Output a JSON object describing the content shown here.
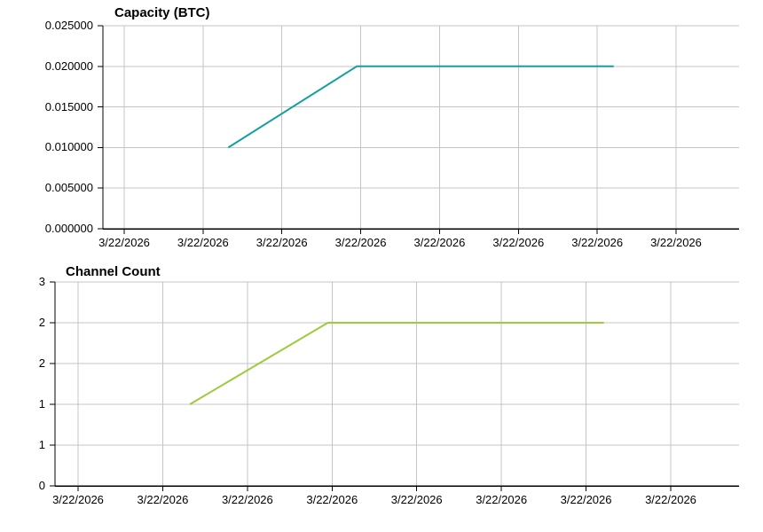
{
  "colors": {
    "background": "#ffffff",
    "grid": "#c4c4c4",
    "axis": "#000000",
    "text": "#000000",
    "capacity_line": "#14a0a0",
    "channel_line": "#9ccb3b"
  },
  "chart_data": [
    {
      "type": "line",
      "title": "Capacity (BTC)",
      "xlabel": "",
      "ylabel": "",
      "grid": true,
      "legend": "none",
      "ylim": [
        0,
        0.025
      ],
      "x_unit": "fractional-tick-index",
      "x_tick_labels": [
        "3/22/2026",
        "3/22/2026",
        "3/22/2026",
        "3/22/2026",
        "3/22/2026",
        "3/22/2026",
        "3/22/2026",
        "3/22/2026"
      ],
      "y_ticks": [
        {
          "label": "0.025000",
          "value": 0.025
        },
        {
          "label": "0.020000",
          "value": 0.02
        },
        {
          "label": "0.015000",
          "value": 0.015
        },
        {
          "label": "0.010000",
          "value": 0.01
        },
        {
          "label": "0.005000",
          "value": 0.005
        },
        {
          "label": "0.000000",
          "value": 0.0
        }
      ],
      "series": [
        {
          "name": "Capacity (BTC)",
          "color": "#14a0a0",
          "values": [
            0.01,
            0.02,
            0.02
          ],
          "points": [
            {
              "x": 1.32,
              "y": 0.01
            },
            {
              "x": 2.95,
              "y": 0.02
            },
            {
              "x": 6.21,
              "y": 0.02
            }
          ]
        }
      ]
    },
    {
      "type": "line",
      "title": "Channel Count",
      "xlabel": "",
      "ylabel": "",
      "grid": true,
      "legend": "none",
      "ylim": [
        0,
        2.5
      ],
      "x_unit": "fractional-tick-index",
      "x_tick_labels": [
        "3/22/2026",
        "3/22/2026",
        "3/22/2026",
        "3/22/2026",
        "3/22/2026",
        "3/22/2026",
        "3/22/2026",
        "3/22/2026"
      ],
      "y_ticks": [
        {
          "label": "3",
          "value": 2.5
        },
        {
          "label": "2",
          "value": 2.0
        },
        {
          "label": "2",
          "value": 1.5
        },
        {
          "label": "1",
          "value": 1.0
        },
        {
          "label": "1",
          "value": 0.5
        },
        {
          "label": "0",
          "value": 0.0
        }
      ],
      "series": [
        {
          "name": "Channel Count",
          "color": "#9ccb3b",
          "values": [
            1,
            2,
            2
          ],
          "points": [
            {
              "x": 1.32,
              "y": 1
            },
            {
              "x": 2.95,
              "y": 2
            },
            {
              "x": 6.21,
              "y": 2
            }
          ]
        }
      ]
    }
  ]
}
